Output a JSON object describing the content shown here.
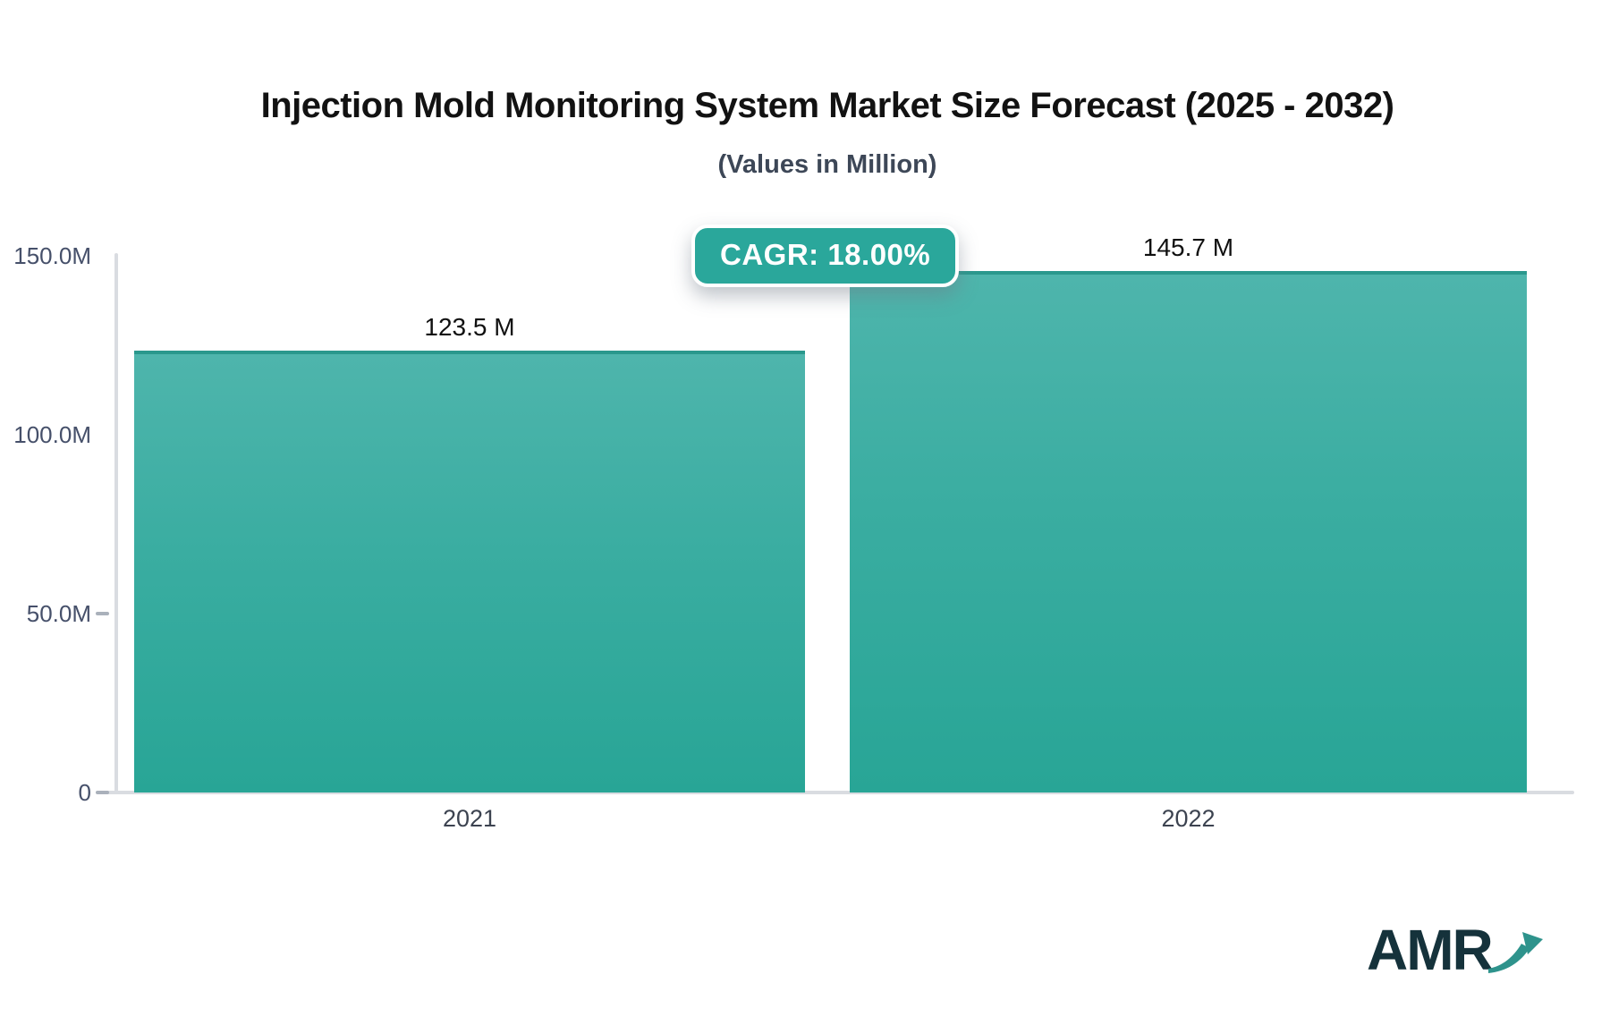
{
  "header": {
    "title": "Injection Mold Monitoring System Market Size Forecast (2025 - 2032)",
    "subtitle": "(Values in Million)"
  },
  "badge": {
    "label": "CAGR: 18.00%",
    "bg_color": "#2aa79b",
    "text_color": "#ffffff"
  },
  "chart_data": {
    "type": "bar",
    "categories": [
      "2021",
      "2022"
    ],
    "values": [
      123.5,
      145.7
    ],
    "value_labels": [
      "123.5 M",
      "145.7 M"
    ],
    "title": "Injection Mold Monitoring System Market Size Forecast (2025 - 2032)",
    "subtitle": "(Values in Million)",
    "unit": "Million",
    "cagr_percent": 18.0,
    "xlabel": "",
    "ylabel": "",
    "ylim": [
      0,
      150
    ],
    "ytick_labels": [
      "150.0M",
      "100.0M",
      "50.0M",
      "0"
    ],
    "grid": false,
    "legend": false,
    "bar_gradient_top": "#4eb5ac",
    "bar_gradient_bottom": "#28a596",
    "bar_top_stroke": "#2a988d",
    "axis_color": "#d9dce1"
  },
  "logo": {
    "text": "AMR",
    "text_color": "#15323b",
    "arrow_color": "#2e938c"
  }
}
